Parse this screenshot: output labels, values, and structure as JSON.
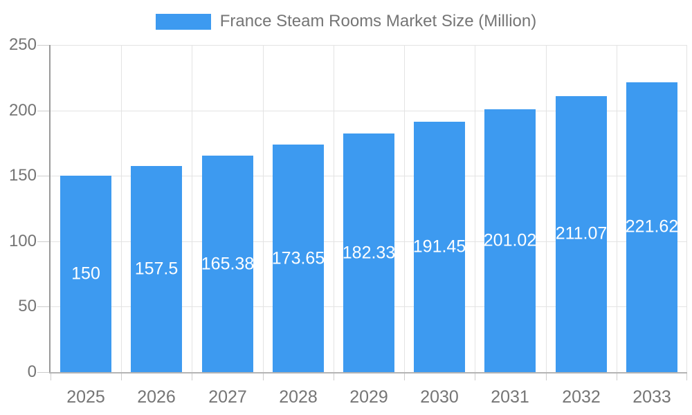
{
  "legend": {
    "label": "France Steam Rooms Market Size (Million)"
  },
  "chart_data": {
    "type": "bar",
    "title": "France Steam Rooms Market Size (Million)",
    "categories": [
      "2025",
      "2026",
      "2027",
      "2028",
      "2029",
      "2030",
      "2031",
      "2032",
      "2033"
    ],
    "values": [
      150,
      157.5,
      165.38,
      173.65,
      182.33,
      191.45,
      201.02,
      211.07,
      221.62
    ],
    "value_labels": [
      "150",
      "157.5",
      "165.38",
      "173.65",
      "182.33",
      "191.45",
      "201.02",
      "211.07",
      "221.62"
    ],
    "xlabel": "",
    "ylabel": "",
    "ylim": [
      0,
      250
    ],
    "yticks": [
      0,
      50,
      100,
      150,
      200,
      250
    ],
    "grid": true,
    "legend_position": "top-center",
    "colors": {
      "bar": "#3D9AF0",
      "value_label": "#ffffff",
      "axis_text": "#757575",
      "grid_line": "#e3e3e3",
      "tick_line": "#cccccc",
      "y_axis_line": "#999999",
      "x_axis_line": "#b3b3b3"
    }
  }
}
